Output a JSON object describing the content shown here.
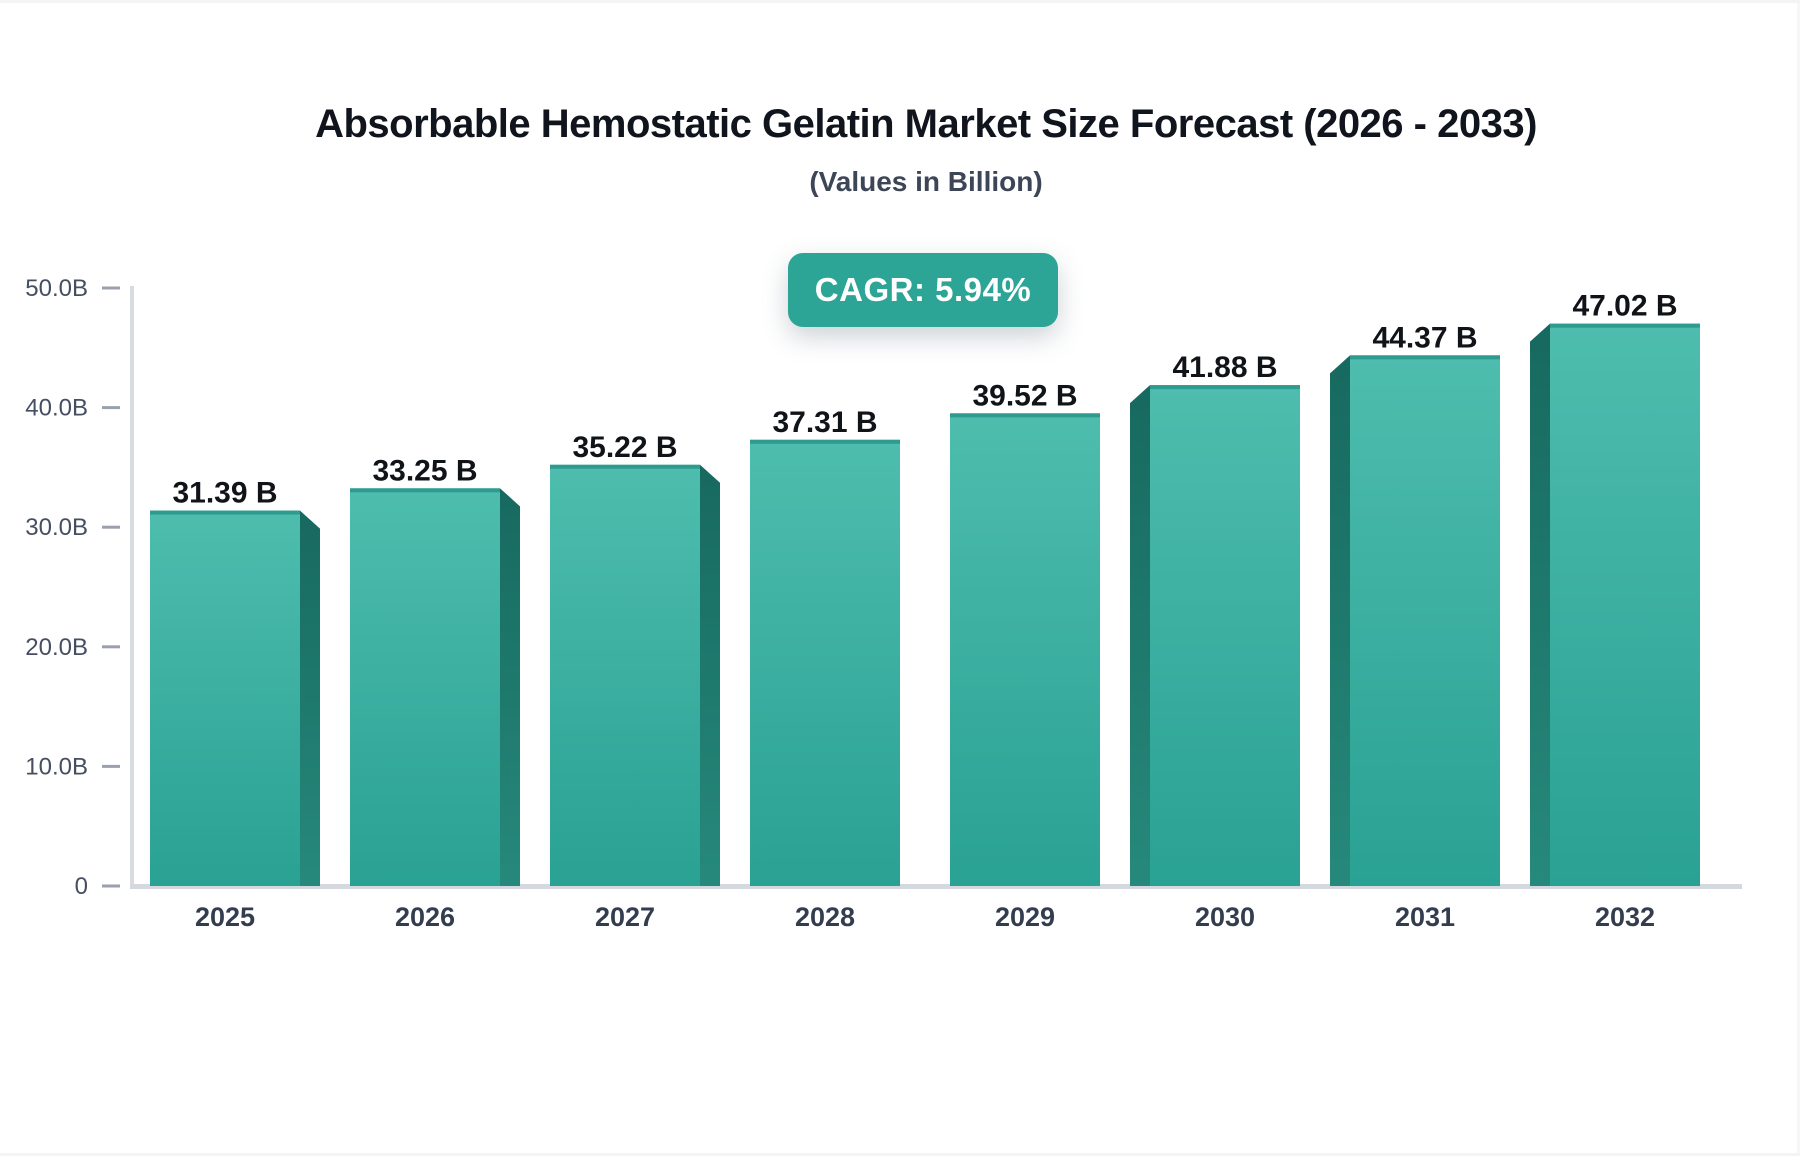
{
  "header": {
    "title": "Absorbable Hemostatic Gelatin Market Size Forecast (2026 - 2033)",
    "subtitle": "(Values in Billion)"
  },
  "badge": {
    "label": "CAGR: 5.94%",
    "background": "#2ca496",
    "text_color": "#ffffff"
  },
  "chart_data": {
    "type": "bar",
    "title": "Absorbable Hemostatic Gelatin Market Size Forecast (2026 - 2033)",
    "subtitle": "(Values in Billion)",
    "xlabel": "",
    "ylabel": "",
    "categories": [
      "2025",
      "2026",
      "2027",
      "2028",
      "2029",
      "2030",
      "2031",
      "2032"
    ],
    "values": [
      31.39,
      33.25,
      35.22,
      37.31,
      39.52,
      41.88,
      44.37,
      47.02
    ],
    "value_labels": [
      "31.39 B",
      "33.25 B",
      "35.22 B",
      "37.31 B",
      "39.52 B",
      "41.88 B",
      "44.37 B",
      "47.02 B"
    ],
    "ylim": [
      0,
      50
    ],
    "y_tick_values": [
      0,
      10,
      20,
      30,
      40,
      50
    ],
    "y_tick_labels": [
      "0",
      "10.0B",
      "20.0B",
      "30.0B",
      "40.0B",
      "50.0B"
    ],
    "grid": "off",
    "legend": "none",
    "bar_style": "pseudo-3d-center-vanishing",
    "colors": {
      "bar_face_top": "#4ebdae",
      "bar_face_bottom": "#29a193",
      "bar_top_edge": "#2d9b8e",
      "bar_side_dark_top": "#17695f",
      "bar_side_dark_bottom": "#26897b",
      "axis_line": "#d8dbe1",
      "baseline": "#d5d8de",
      "tick": "#9aa1ad",
      "y_label_text": "#454f61",
      "x_label_text": "#333d4e",
      "value_label_text": "#101318"
    }
  }
}
